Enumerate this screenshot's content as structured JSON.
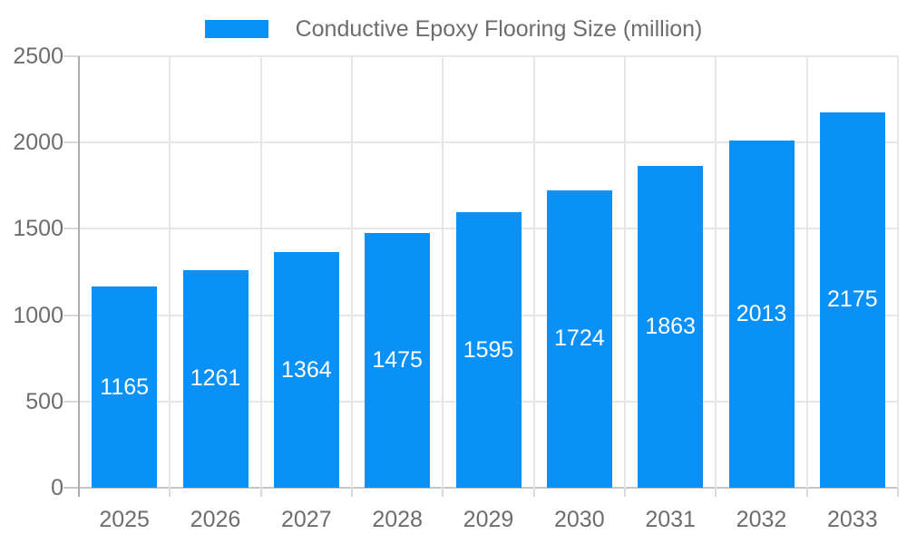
{
  "legend": {
    "position": "top",
    "items": [
      {
        "label": "Conductive Epoxy Flooring Size (million)",
        "color": "#0a91f8"
      }
    ]
  },
  "chart_data": {
    "type": "bar",
    "title": "",
    "categories": [
      "2025",
      "2026",
      "2027",
      "2028",
      "2029",
      "2030",
      "2031",
      "2032",
      "2033"
    ],
    "series": [
      {
        "name": "Conductive Epoxy Flooring Size (million)",
        "color": "#0a91f8",
        "values": [
          1165,
          1261,
          1364,
          1475,
          1595,
          1724,
          1863,
          2013,
          2175
        ]
      }
    ],
    "xlabel": "",
    "ylabel": "",
    "ylim": [
      0,
      2500
    ],
    "yticks": [
      0,
      500,
      1000,
      1500,
      2000,
      2500
    ],
    "grid": true,
    "legend_position": "top",
    "bar_label_color": "#ffffff",
    "axis_text_color": "#6d6d6d",
    "gridline_color": "#e6e6e6",
    "axis_line_color": "#ababab"
  }
}
